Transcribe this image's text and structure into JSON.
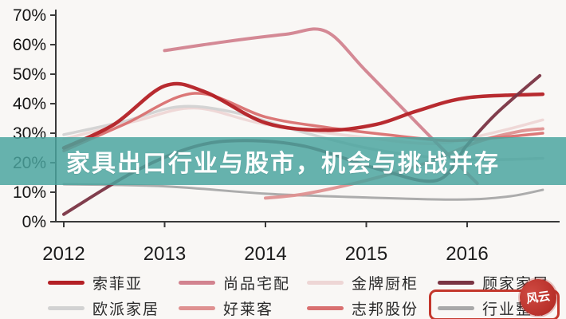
{
  "banner": {
    "title": "家具出口行业与股市，机会与挑战并存",
    "background_color": "#4aa49f",
    "text_color": "#ffffff"
  },
  "watermark": {
    "stamp_text": "风云",
    "stamp_color": "#ae251f"
  },
  "chart_data": {
    "type": "line",
    "title": "",
    "xlabel": "",
    "ylabel": "",
    "x_ticks": [
      "2012",
      "2013",
      "2014",
      "2015",
      "2016"
    ],
    "x_tick_years": [
      2012,
      2013,
      2014,
      2015,
      2016
    ],
    "y_ticks": [
      "70%",
      "60%",
      "50%",
      "40%",
      "30%",
      "20%",
      "10%",
      "0%"
    ],
    "y_tick_values": [
      70,
      60,
      50,
      40,
      30,
      20,
      10,
      0
    ],
    "ylim": [
      0,
      70
    ],
    "xlim": [
      2012,
      2016.9
    ],
    "grid": false,
    "legend_position": "bottom",
    "legend_highlight": "行业整体",
    "axis_color": "#3a3a3a",
    "series": [
      {
        "name": "索菲亚",
        "color": "#b42025",
        "width": 4.5,
        "points": [
          [
            2012,
            25
          ],
          [
            2012.5,
            33
          ],
          [
            2013,
            46
          ],
          [
            2013.4,
            44
          ],
          [
            2014,
            33.5
          ],
          [
            2014.6,
            31
          ],
          [
            2015.1,
            33
          ],
          [
            2015.5,
            37.5
          ],
          [
            2016,
            42
          ],
          [
            2016.75,
            43.2
          ]
        ]
      },
      {
        "name": "尚品宅配",
        "color": "#d2838f",
        "width": 4,
        "points": [
          [
            2013,
            58
          ],
          [
            2013.6,
            61
          ],
          [
            2014.2,
            63.5
          ],
          [
            2014.6,
            64.5
          ],
          [
            2015,
            51
          ],
          [
            2015.6,
            30
          ],
          [
            2016.1,
            13
          ]
        ]
      },
      {
        "name": "金牌厨柜",
        "color": "#eed6d5",
        "width": 3.5,
        "points": [
          [
            2012,
            28
          ],
          [
            2012.7,
            34
          ],
          [
            2013.3,
            38.5
          ],
          [
            2014,
            33
          ],
          [
            2015,
            28.5
          ],
          [
            2015.7,
            26.5
          ],
          [
            2016.3,
            30.5
          ],
          [
            2016.75,
            34.5
          ]
        ]
      },
      {
        "name": "顾家家居",
        "color": "#7a3443",
        "width": 4,
        "points": [
          [
            2012,
            2.5
          ],
          [
            2012.7,
            17
          ],
          [
            2013.3,
            25.5
          ],
          [
            2013.8,
            27.5
          ],
          [
            2014.4,
            25.5
          ],
          [
            2015.1,
            18
          ],
          [
            2015.7,
            14
          ],
          [
            2016,
            26
          ],
          [
            2016.3,
            37
          ],
          [
            2016.72,
            49.5
          ]
        ]
      },
      {
        "name": "欧派家居",
        "color": "#d2d2d2",
        "width": 3.5,
        "points": [
          [
            2012,
            29.5
          ],
          [
            2012.6,
            34
          ],
          [
            2013.15,
            39
          ],
          [
            2013.7,
            37
          ],
          [
            2014.3,
            31
          ],
          [
            2015,
            25
          ],
          [
            2015.6,
            22
          ],
          [
            2016.2,
            21
          ],
          [
            2016.75,
            21.5
          ]
        ]
      },
      {
        "name": "好莱客",
        "color": "#df9191",
        "width": 4,
        "points": [
          [
            2014,
            8
          ],
          [
            2014.4,
            9.5
          ],
          [
            2015,
            14
          ],
          [
            2015.6,
            20
          ],
          [
            2016.1,
            27
          ],
          [
            2016.5,
            30.5
          ],
          [
            2016.75,
            31.5
          ]
        ]
      },
      {
        "name": "志邦股份",
        "color": "#d97070",
        "width": 3.5,
        "points": [
          [
            2012,
            24
          ],
          [
            2012.6,
            33
          ],
          [
            2013.3,
            43.5
          ],
          [
            2014,
            35.5
          ],
          [
            2014.6,
            32
          ],
          [
            2015.2,
            29.5
          ],
          [
            2015.8,
            27.5
          ],
          [
            2016.3,
            28.5
          ],
          [
            2016.75,
            30
          ]
        ]
      },
      {
        "name": "行业整体",
        "color": "#a8a8a8",
        "width": 3,
        "points": [
          [
            2012,
            12.7
          ],
          [
            2013,
            12
          ],
          [
            2014,
            9.5
          ],
          [
            2015,
            8.2
          ],
          [
            2015.9,
            7.5
          ],
          [
            2016.4,
            8.5
          ],
          [
            2016.75,
            10.8
          ]
        ]
      }
    ],
    "draw_order": [
      2,
      4,
      7,
      5,
      6,
      1,
      0,
      3
    ]
  }
}
